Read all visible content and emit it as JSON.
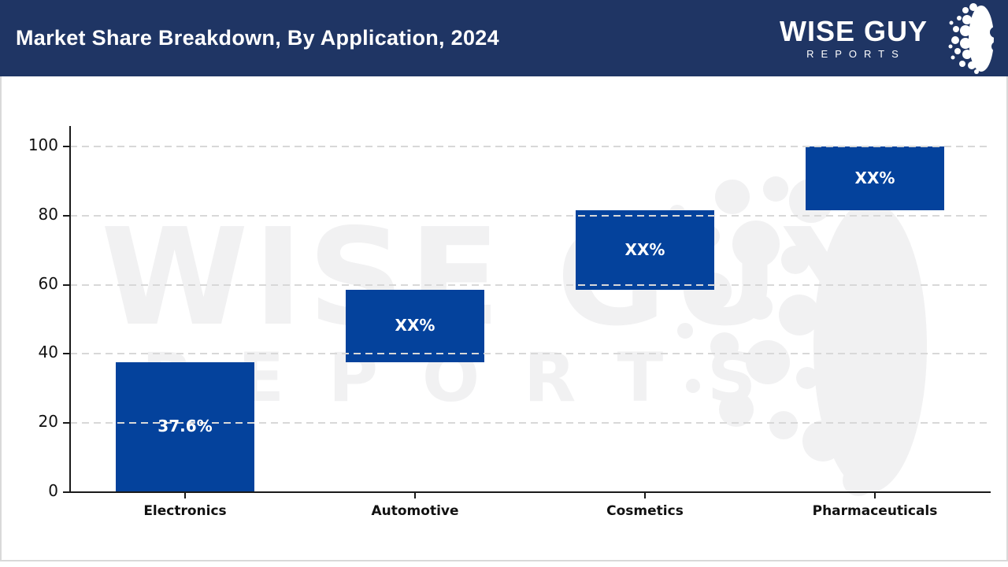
{
  "header": {
    "title": "Market Share Breakdown, By Application, 2024",
    "logo": {
      "line1": "WISE GUY",
      "line2": "REPORTS"
    }
  },
  "watermark": {
    "line1": "WISE GUY",
    "line2": "REPORTS"
  },
  "colors": {
    "header_bg": "#1f3564",
    "bar": "#04429c",
    "bar_label": "#ffffff",
    "axis": "#1a1a1a",
    "tick_label": "#111111",
    "grid": "#d8d8d8",
    "watermark": "#f1f1f2",
    "frame_border": "#d9d9d9"
  },
  "chart_data": {
    "type": "bar",
    "variant": "waterfall",
    "title": "Market Share Breakdown, By Application, 2024",
    "categories": [
      "Electronics",
      "Automotive",
      "Cosmetics",
      "Pharmaceuticals"
    ],
    "segments": [
      {
        "category": "Electronics",
        "start": 0,
        "end": 37.6,
        "label": "37.6%"
      },
      {
        "category": "Automotive",
        "start": 37.6,
        "end": 58.5,
        "label": "XX%"
      },
      {
        "category": "Cosmetics",
        "start": 58.5,
        "end": 81.5,
        "label": "XX%"
      },
      {
        "category": "Pharmaceuticals",
        "start": 81.5,
        "end": 100,
        "label": "XX%"
      }
    ],
    "bar_value_labels": [
      "37.6%",
      "XX%",
      "XX%",
      "XX%"
    ],
    "xlabel": "",
    "ylabel": "",
    "ylim": [
      0,
      100
    ],
    "yticks": [
      0,
      20,
      40,
      60,
      80,
      100
    ],
    "grid": "horizontal-dashed",
    "legend": "none"
  }
}
